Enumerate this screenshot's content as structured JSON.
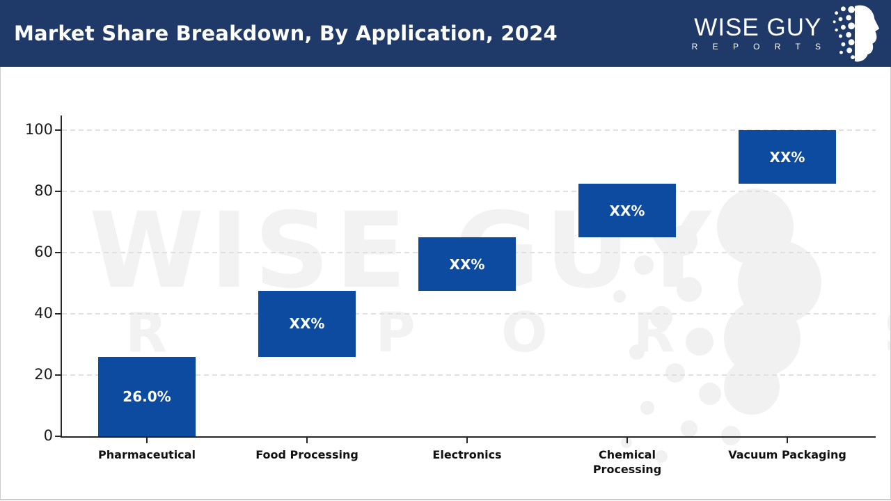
{
  "header": {
    "title": "Market Share Breakdown, By Application, 2024",
    "logo": {
      "name": "WISE GUY",
      "sub": "R E P O R T S"
    }
  },
  "watermark": {
    "line1": "WISE GUY",
    "line2": "R E P O R T S"
  },
  "colors": {
    "header_bg": "#1f3a68",
    "bar": "#0c4b9f",
    "grid": "#e0e0e0",
    "axis": "#262626",
    "watermark": "#f2f2f2",
    "border": "#cccccc",
    "tick_text": "#1a1a1a"
  },
  "chart_data": {
    "type": "bar",
    "subtype": "waterfall",
    "title": "Market Share Breakdown, By Application, 2024",
    "categories": [
      "Pharmaceutical",
      "Food Processing",
      "Electronics",
      "Chemical Processing",
      "Vacuum Packaging"
    ],
    "category_label_lines": [
      [
        "Pharmaceutical"
      ],
      [
        "Food Processing"
      ],
      [
        "Electronics"
      ],
      [
        "Chemical",
        "Processing"
      ],
      [
        "Vacuum Packaging"
      ]
    ],
    "segments": [
      {
        "category": "Pharmaceutical",
        "start": 0,
        "end": 26.0,
        "label": "26.0%"
      },
      {
        "category": "Food Processing",
        "start": 26.0,
        "end": 47.5,
        "label": "XX%"
      },
      {
        "category": "Electronics",
        "start": 47.5,
        "end": 65.0,
        "label": "XX%"
      },
      {
        "category": "Chemical Processing",
        "start": 65.0,
        "end": 82.5,
        "label": "XX%"
      },
      {
        "category": "Vacuum Packaging",
        "start": 82.5,
        "end": 100.0,
        "label": "XX%"
      }
    ],
    "xlabel": "",
    "ylabel": "",
    "ylim": [
      0,
      105
    ],
    "yticks": [
      0,
      20,
      40,
      60,
      80,
      100
    ],
    "grid": "horizontal dashed",
    "legend": "none",
    "bar_color": "#0c4b9f"
  }
}
